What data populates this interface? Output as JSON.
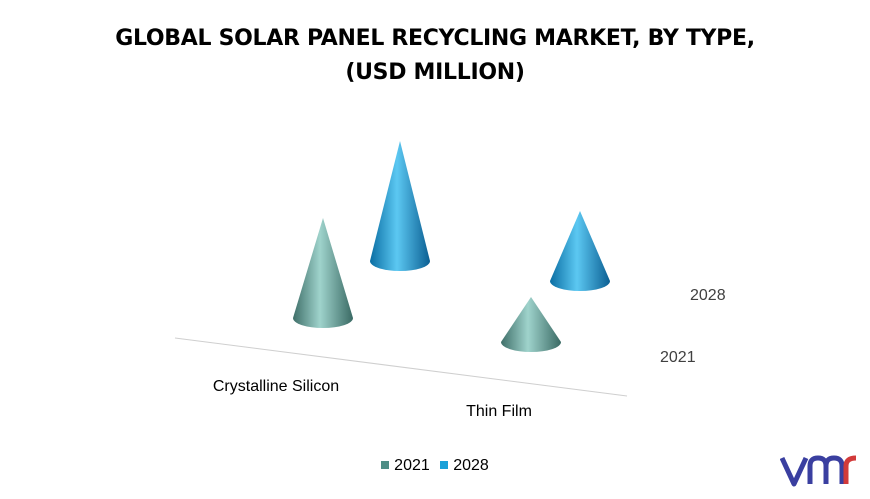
{
  "chart_data": {
    "type": "bar",
    "style": "3d-cone",
    "title": [
      "GLOBAL SOLAR PANEL RECYCLING MARKET, BY TYPE,",
      "(USD MILLION)"
    ],
    "categories": [
      "Crystalline Silicon",
      "Thin Film"
    ],
    "series": [
      {
        "name": "2021",
        "values": [
          100,
          45
        ],
        "color": "#4e8e86"
      },
      {
        "name": "2028",
        "values": [
          120,
          70
        ],
        "color": "#1aa0d8"
      }
    ],
    "depth_labels": [
      "2021",
      "2028"
    ],
    "legend_position": "bottom",
    "grid": false
  },
  "logo": {
    "text": "vmr",
    "icon": "vmr-logo-icon",
    "color": "#3a3fa0"
  }
}
